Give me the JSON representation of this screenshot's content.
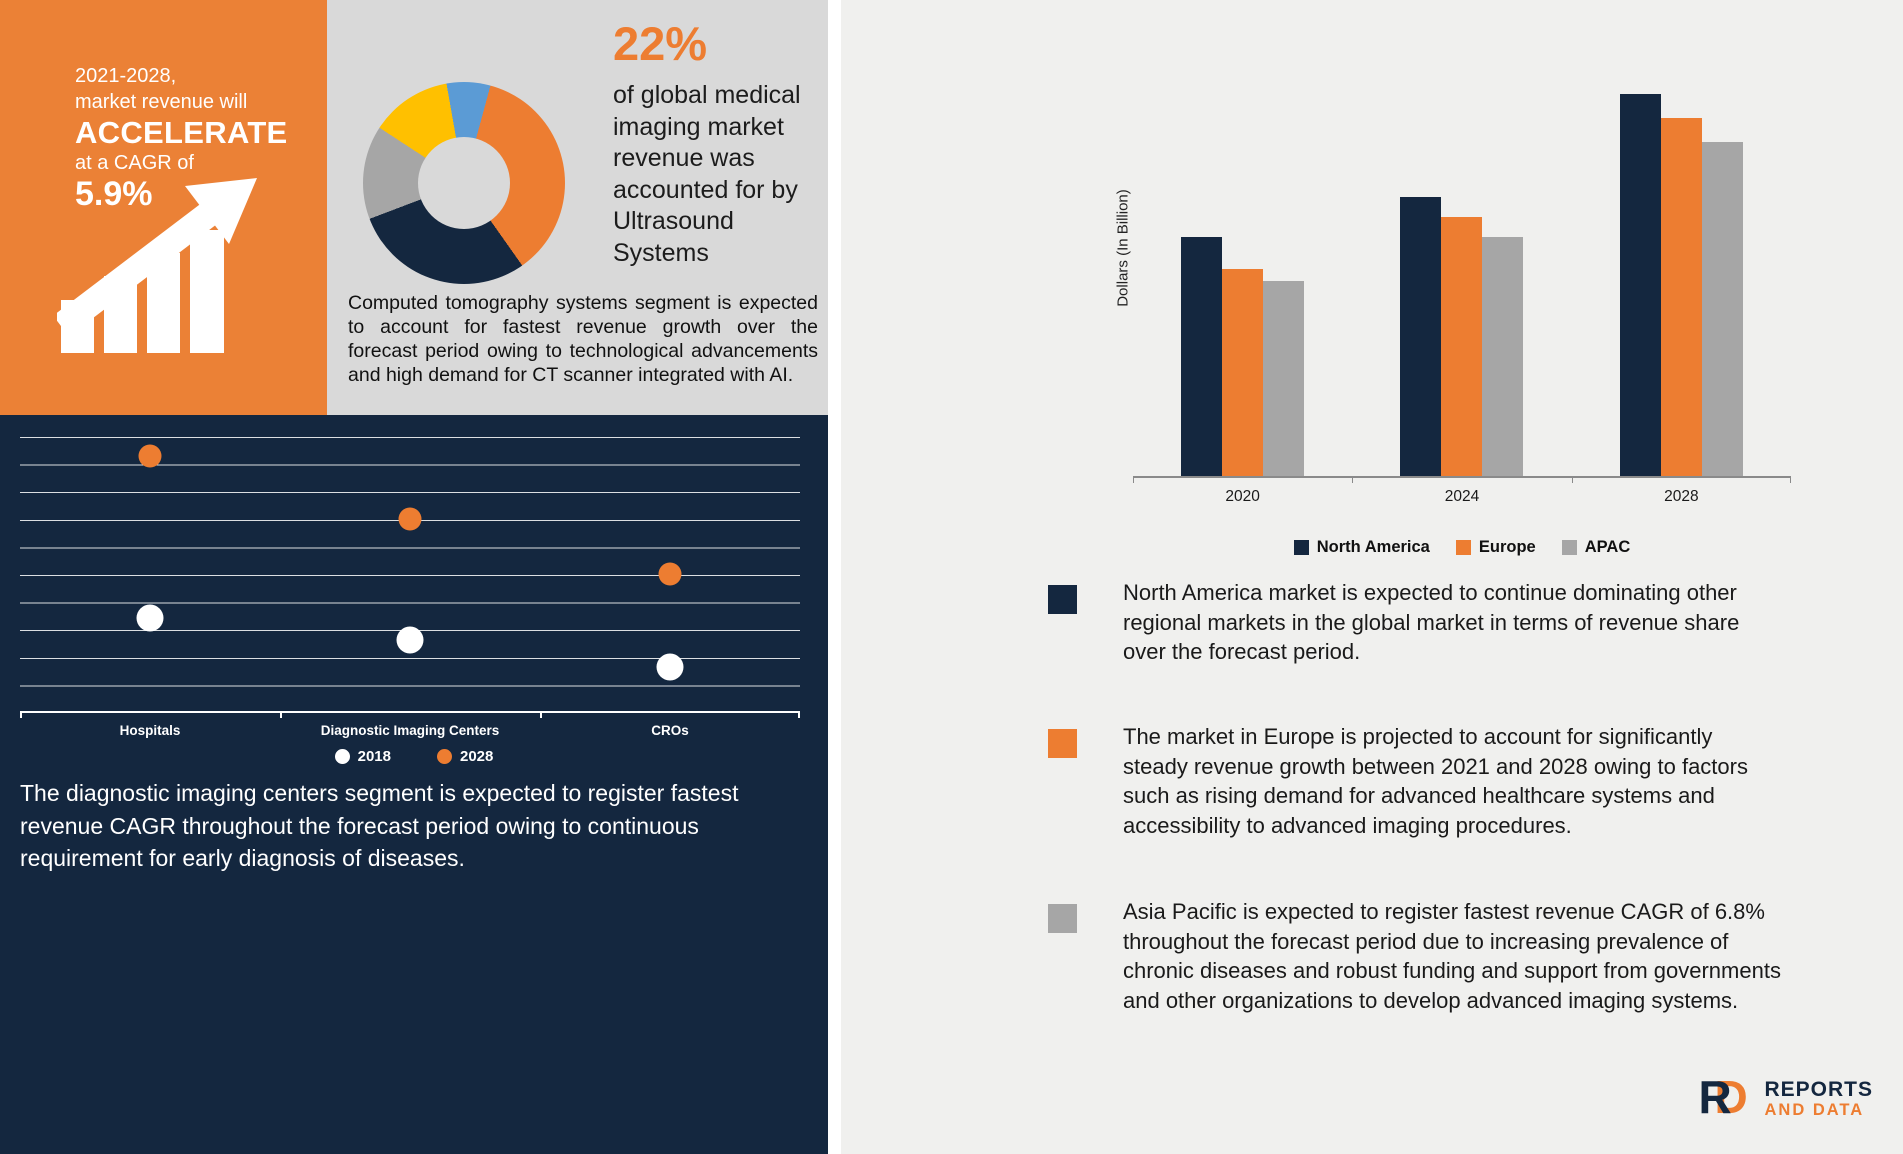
{
  "colors": {
    "orange": "#ED7D31",
    "card_orange": "#EB8136",
    "navy": "#14273F",
    "light_gray": "#D9D9D9",
    "panel_gray": "#F0F0EE",
    "bar_gray": "#A6A6A6",
    "yellow": "#FFC000",
    "blue": "#5B9BD5",
    "white": "#FFFFFF"
  },
  "accelerate_card": {
    "period": "2021-2028,",
    "lead": "market revenue will",
    "highlight": "ACCELERATE",
    "sub": "at a CAGR of",
    "cagr": "5.9%"
  },
  "ultrasound_card": {
    "stat": "22%",
    "caption": "of global medical imaging market revenue was accounted for by Ultrasound Systems",
    "body": "Computed tomography systems segment is expected to account for fastest revenue growth over the forecast period owing to technological advancements and high demand for CT scanner integrated with AI."
  },
  "segment_panel": {
    "note": "The diagnostic imaging centers segment is expected to register fastest revenue CAGR throughout the forecast period owing to continuous requirement for early diagnosis of diseases."
  },
  "regional": {
    "bullets": [
      {
        "color": "#14273F",
        "text": "North America market is expected to continue dominating other regional markets in the global market in terms of revenue share over the forecast period."
      },
      {
        "color": "#ED7D31",
        "text": "The market in Europe is projected to account for significantly steady revenue growth between 2021 and 2028 owing to factors such as rising demand for advanced healthcare systems and accessibility to advanced imaging procedures."
      },
      {
        "color": "#A6A6A6",
        "text": "Asia Pacific is expected to register fastest revenue CAGR of 6.8% throughout the forecast period due to increasing prevalence of chronic diseases and robust funding and support from governments and other organizations to develop advanced imaging systems."
      }
    ]
  },
  "logo": {
    "mark_r": "R",
    "mark_d": "D",
    "line1": "REPORTS",
    "line2": "AND DATA"
  },
  "chart_data": [
    {
      "type": "pie",
      "title": "",
      "note": "Unlabeled donut chart; the 22% stat beside it refers to Ultrasound Systems' share of global medical imaging market revenue. Segment sizes estimated from arc angles.",
      "rotation_deg": -10,
      "donut_hole_ratio": 0.45,
      "segments": [
        {
          "label": "blue-segment",
          "value": 7,
          "color": "#5B9BD5"
        },
        {
          "label": "orange-segment",
          "value": 36,
          "color": "#ED7D31"
        },
        {
          "label": "navy-segment",
          "value": 29,
          "color": "#14273F"
        },
        {
          "label": "gray-segment",
          "value": 15,
          "color": "#A6A6A6"
        },
        {
          "label": "yellow-segment",
          "value": 13,
          "color": "#FFC000"
        }
      ]
    },
    {
      "type": "scatter",
      "note": "Dot plot on ruled lines; no numeric axis labels shown, values estimated from gridline positions on a 0-10 scale.",
      "categories": [
        "Hospitals",
        "Diagnostic Imaging Centers",
        "CROs"
      ],
      "series": [
        {
          "name": "2018",
          "color": "#FFFFFF",
          "values": [
            3.4,
            2.6,
            1.6
          ]
        },
        {
          "name": "2028",
          "color": "#ED7D31",
          "values": [
            9.3,
            7.0,
            5.0
          ]
        }
      ],
      "ylim": [
        0,
        10
      ],
      "legend_position": "bottom"
    },
    {
      "type": "bar",
      "note": "Grouped bar chart; y-axis has no numeric tick labels, values are relative units estimated from bar heights.",
      "categories": [
        "2020",
        "2024",
        "2028"
      ],
      "series": [
        {
          "name": "North America",
          "color": "#14273F",
          "values": [
            60,
            70,
            96
          ]
        },
        {
          "name": "Europe",
          "color": "#ED7D31",
          "values": [
            52,
            65,
            90
          ]
        },
        {
          "name": "APAC",
          "color": "#A6A6A6",
          "values": [
            49,
            60,
            84
          ]
        }
      ],
      "ylabel": "Dollars (In Billion)",
      "ylim": [
        0,
        100
      ],
      "grid": false,
      "legend_position": "bottom"
    }
  ]
}
